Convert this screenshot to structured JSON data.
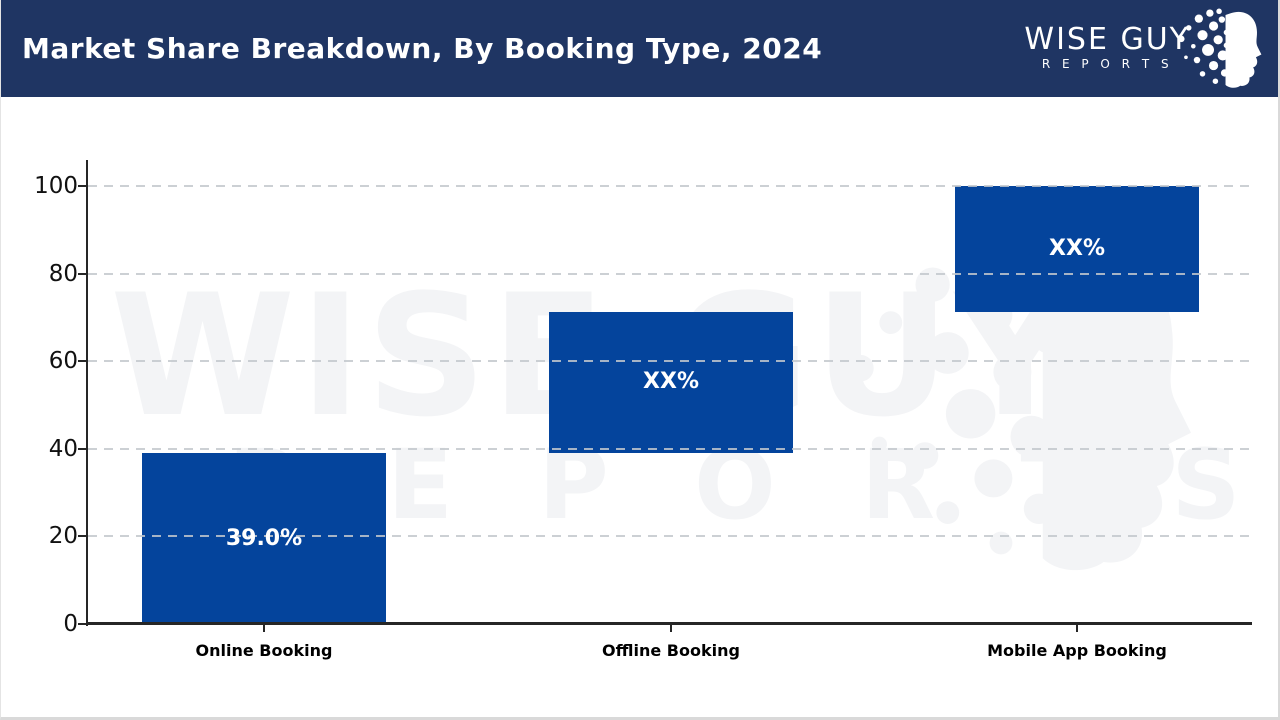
{
  "header": {
    "title": "Market Share Breakdown, By Booking Type, 2024",
    "logo": {
      "name": "WISE GUY",
      "subtitle": "R E P O R T S"
    }
  },
  "watermark": {
    "line1": "WISE GUY",
    "line2": "R E P O R T S"
  },
  "colors": {
    "header_bg": "#1f3563",
    "bar": "#04449c",
    "grid": "#c3c8cd",
    "axis": "#262626",
    "bar_label": "#ffffff",
    "watermark": "#f3f4f6"
  },
  "chart_data": {
    "type": "bar",
    "subtype": "floating-segment-breakdown",
    "title": "Market Share Breakdown, By Booking Type, 2024",
    "categories": [
      "Online Booking",
      "Offline Booking",
      "Mobile App Booking"
    ],
    "segments": [
      {
        "category": "Online Booking",
        "start": 0,
        "end": 39.0,
        "label": "39.0%"
      },
      {
        "category": "Offline Booking",
        "start": 39.0,
        "end": 71.3,
        "label": "XX%"
      },
      {
        "category": "Mobile App Booking",
        "start": 71.3,
        "end": 100,
        "label": "XX%"
      }
    ],
    "ylim": [
      0,
      100
    ],
    "yticks": [
      0,
      20,
      40,
      60,
      80,
      100
    ],
    "xlabel": "",
    "ylabel": "",
    "grid": "horizontal dashed, drawn over bars",
    "legend": "none",
    "bar_color": "#04449c"
  }
}
